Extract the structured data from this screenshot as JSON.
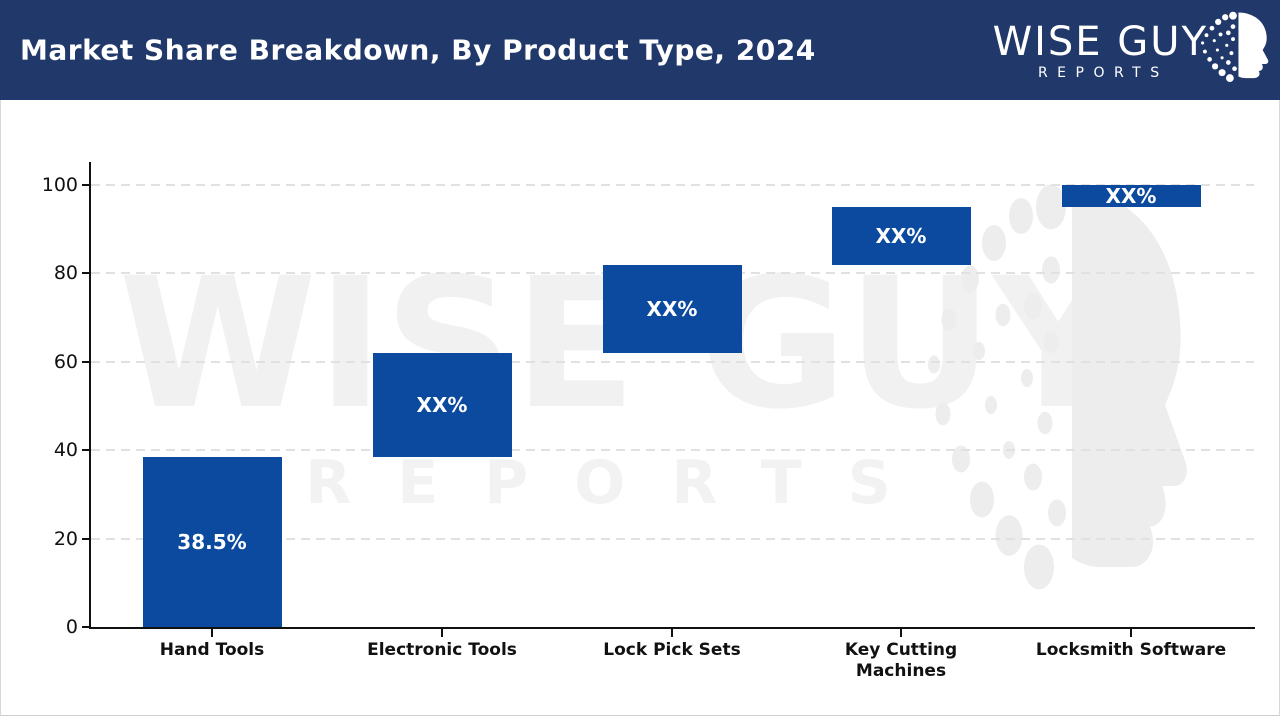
{
  "header": {
    "title": "Market Share Breakdown, By Product Type, 2024",
    "logo": {
      "line1": "WISE GUY",
      "line2": "REPORTS"
    }
  },
  "watermark": {
    "line1": "WISE GUY",
    "line2": "REPORTS"
  },
  "colors": {
    "header_bg": "#21386a",
    "bar": "#0b4a9e",
    "bar_label": "#ffffff",
    "grid": "#e1e1e1",
    "axis": "#111111",
    "title_text": "#ffffff",
    "watermark": "#f1f1f1"
  },
  "chart_data": {
    "type": "bar",
    "variant": "waterfall",
    "title": "Market Share Breakdown, By Product Type, 2024",
    "categories": [
      "Hand Tools",
      "Electronic Tools",
      "Lock Pick Sets",
      "Key Cutting Machines",
      "Locksmith Software"
    ],
    "categories_display": [
      "Hand Tools",
      "Electronic Tools",
      "Lock Pick Sets",
      "Key Cutting\nMachines",
      "Locksmith Software"
    ],
    "series": [
      {
        "name": "Market Share %",
        "starts": [
          0,
          38.5,
          62,
          82,
          95
        ],
        "ends": [
          38.5,
          62,
          82,
          95,
          100
        ]
      }
    ],
    "bar_labels": [
      "38.5%",
      "XX%",
      "XX%",
      "XX%",
      "XX%"
    ],
    "xlabel": "",
    "ylabel": "",
    "ylim": [
      0,
      105
    ],
    "yticks": [
      0,
      20,
      40,
      60,
      80,
      100
    ],
    "grid": "horizontal dashed",
    "legend": "none"
  }
}
